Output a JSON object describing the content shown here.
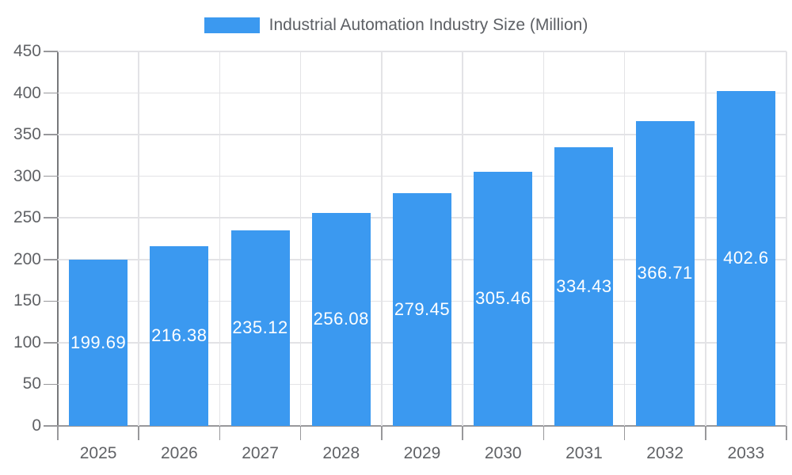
{
  "legend": {
    "label": "Industrial Automation Industry Size (Million)",
    "swatch_color": "#3b99f0"
  },
  "chart_data": {
    "type": "bar",
    "title": "Industrial Automation Industry Size (Million)",
    "categories": [
      "2025",
      "2026",
      "2027",
      "2028",
      "2029",
      "2030",
      "2031",
      "2032",
      "2033"
    ],
    "values": [
      199.69,
      216.38,
      235.12,
      256.08,
      279.45,
      305.46,
      334.43,
      366.71,
      402.6
    ],
    "value_labels": [
      "199.69",
      "216.38",
      "235.12",
      "256.08",
      "279.45",
      "305.46",
      "334.43",
      "366.71",
      "402.6"
    ],
    "xlabel": "",
    "ylabel": "",
    "ylim": [
      0,
      450
    ],
    "yticks": [
      0,
      50,
      100,
      150,
      200,
      250,
      300,
      350,
      400,
      450
    ],
    "ytick_labels": [
      "0",
      "50",
      "100",
      "150",
      "200",
      "250",
      "300",
      "350",
      "400",
      "450"
    ],
    "grid": true,
    "legend_position": "top-center",
    "bar_color": "#3b99f0",
    "value_label_color": "#ffffff",
    "axis_label_color": "#606266"
  }
}
